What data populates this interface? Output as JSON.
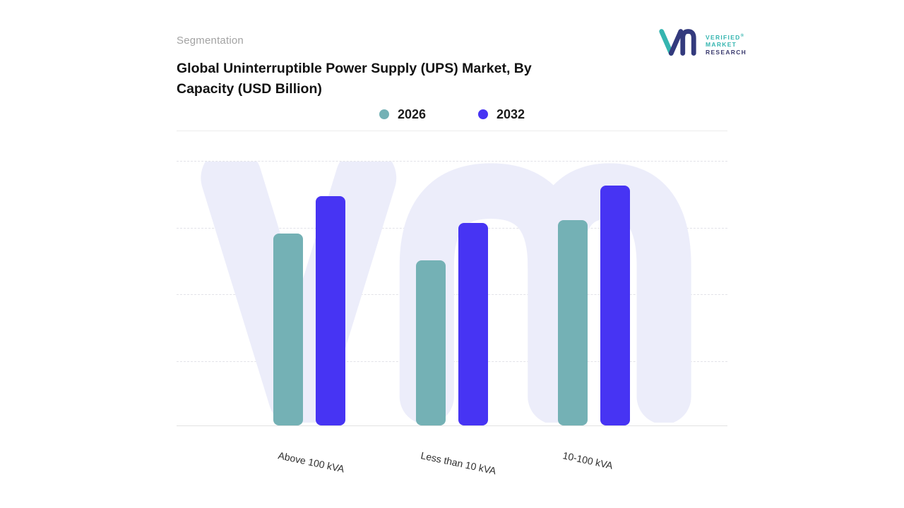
{
  "header": {
    "eyebrow": "Segmentation",
    "title_line1": "Global Uninterruptible Power Supply (UPS) Market, By",
    "title_line2": "Capacity (USD Billion)"
  },
  "logo": {
    "line1": "VERIFIED",
    "registered_mark": "®",
    "line2": "MARKET",
    "line3": "RESEARCH",
    "teal": "#35b5b0",
    "navy": "#333a7d"
  },
  "chart_data": {
    "type": "bar",
    "title": "Global Uninterruptible Power Supply (UPS) Market, By Capacity (USD Billion)",
    "categories": [
      "Above 100 kVA",
      "Less than 10 kVA",
      "10-100 kVA"
    ],
    "series": [
      {
        "name": "2026",
        "color": "#74b1b5",
        "values": [
          7.2,
          6.2,
          7.7
        ]
      },
      {
        "name": "2032",
        "color": "#4734f3",
        "values": [
          8.6,
          7.6,
          9.0
        ]
      }
    ],
    "ylim": [
      0,
      10
    ],
    "value_note": "y-axis has no tick labels; values estimated on a 0-10 relative scale from bar heights",
    "grid": "horizontal-dashed",
    "legend_position": "top-center",
    "watermark": "VM",
    "colors": {
      "watermark": "#ecedfa",
      "gridline": "#e2e2e8",
      "axis_line": "#e3e3e3"
    }
  }
}
